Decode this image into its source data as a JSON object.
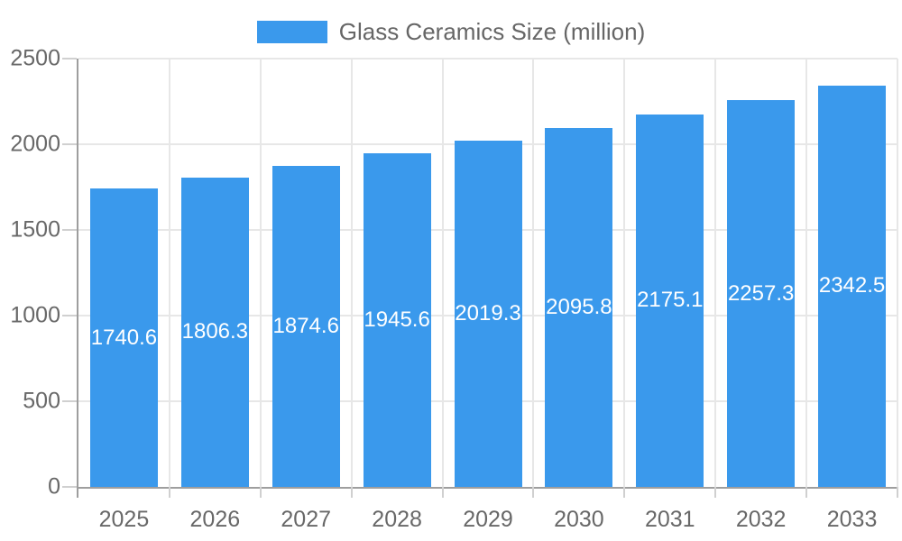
{
  "chart_data": {
    "type": "bar",
    "title": "Glass Ceramics Size (million)",
    "legend": {
      "label": "Glass Ceramics Size (million)",
      "position": "top-center"
    },
    "categories": [
      "2025",
      "2026",
      "2027",
      "2028",
      "2029",
      "2030",
      "2031",
      "2032",
      "2033"
    ],
    "series": [
      {
        "name": "Glass Ceramics Size (million)",
        "values": [
          1740.6,
          1806.3,
          1874.6,
          1945.6,
          2019.3,
          2095.8,
          2175.1,
          2257.3,
          2342.5
        ]
      }
    ],
    "value_labels": [
      "1740.6",
      "1806.3",
      "1874.6",
      "1945.6",
      "2019.3",
      "2095.8",
      "2175.1",
      "2257.3",
      "2342.5"
    ],
    "value_label_position": "center-inside-bar",
    "xlabel": "",
    "ylabel": "",
    "ylim": [
      0,
      2500
    ],
    "yticks": [
      0,
      500,
      1000,
      1500,
      2000,
      2500
    ],
    "grid": "horizontal-and-vertical",
    "colors": {
      "bar": "#3a99ec",
      "axis_line": "#9e9e9e",
      "gridline": "#e7e7e7",
      "tick": "#d0d0d0",
      "axis_text": "#686868",
      "legend_text": "#666666",
      "bar_label_text": "#ffffff",
      "background": "#ffffff"
    }
  }
}
